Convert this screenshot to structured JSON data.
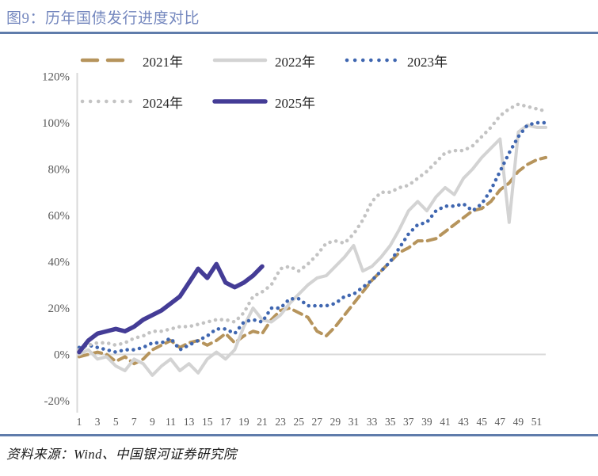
{
  "header": {
    "title": "图9：历年国债发行进度对比"
  },
  "footer": {
    "source": "资料来源：Wind、中国银河证券研究院"
  },
  "colors": {
    "title_text": "#7487be",
    "rule": "#5f7cab",
    "axis_line": "#d9d9d9",
    "tick_text": "#595959",
    "legend_text": "#262626"
  },
  "chart_data": {
    "type": "line",
    "title": "历年国债发行进度对比",
    "xlabel": "",
    "ylabel": "",
    "y_tick_format": "percent",
    "ylim": [
      -20,
      120
    ],
    "y_ticks": [
      120,
      100,
      80,
      60,
      40,
      20,
      0,
      -20
    ],
    "x_ticks": [
      1,
      3,
      5,
      7,
      9,
      11,
      13,
      15,
      17,
      19,
      21,
      23,
      25,
      27,
      29,
      31,
      33,
      35,
      37,
      39,
      41,
      43,
      45,
      47,
      49,
      51
    ],
    "gridlines": "horizontal line at 0% only",
    "legend_position": "top",
    "series": [
      {
        "name": "2021年",
        "color": "#b6945c",
        "line_style": "dashed",
        "width": 4,
        "values": [
          -1,
          0,
          1,
          0,
          -3,
          -1,
          -4,
          -2,
          2,
          4,
          6,
          3,
          5,
          6,
          4,
          6,
          9,
          5,
          8,
          10,
          9,
          15,
          19,
          20,
          18,
          16,
          10,
          8,
          12,
          17,
          22,
          27,
          32,
          36,
          40,
          44,
          46,
          49,
          49,
          50,
          53,
          56,
          59,
          62,
          63,
          66,
          71,
          74,
          79,
          82,
          84,
          85
        ]
      },
      {
        "name": "2022年",
        "color": "#d3d3d3",
        "line_style": "solid",
        "width": 4,
        "values": [
          0,
          2,
          -2,
          -1,
          -5,
          -7,
          -2,
          -4,
          -9,
          -5,
          -2,
          -7,
          -4,
          -8,
          -2,
          1,
          -2,
          2,
          12,
          20,
          15,
          14,
          17,
          22,
          26,
          30,
          33,
          34,
          38,
          42,
          47,
          36,
          38,
          42,
          47,
          54,
          62,
          66,
          62,
          68,
          72,
          69,
          76,
          80,
          85,
          89,
          93,
          57,
          96,
          99,
          98,
          98
        ]
      },
      {
        "name": "2023年",
        "color": "#3f66b0",
        "line_style": "dotted",
        "width": 4.5,
        "values": [
          3,
          4,
          3,
          2,
          1,
          2,
          2,
          3,
          5,
          5,
          7,
          2,
          4,
          6,
          8,
          11,
          11,
          9,
          14,
          15,
          14,
          20,
          20,
          24,
          24,
          21,
          21,
          21,
          22,
          25,
          26,
          29,
          32,
          36,
          40,
          46,
          52,
          56,
          57,
          62,
          64,
          64,
          65,
          62,
          65,
          71,
          79,
          87,
          94,
          99,
          100,
          100
        ]
      },
      {
        "name": "2024年",
        "color": "#c3c3c3",
        "line_style": "dotted",
        "width": 4.5,
        "values": [
          2,
          4,
          5,
          5,
          4,
          5,
          7,
          8,
          10,
          10,
          11,
          12,
          12,
          13,
          14,
          15,
          15,
          14,
          18,
          25,
          27,
          30,
          37,
          38,
          36,
          39,
          43,
          48,
          49,
          48,
          52,
          58,
          66,
          70,
          70,
          72,
          73,
          76,
          79,
          83,
          87,
          88,
          88,
          90,
          94,
          98,
          103,
          106,
          108,
          107,
          106,
          105
        ]
      },
      {
        "name": "2025年",
        "color": "#443c96",
        "line_style": "solid",
        "width": 5.5,
        "values": [
          1,
          6,
          9,
          10,
          11,
          10,
          12,
          15,
          17,
          19,
          22,
          25,
          31,
          37,
          33,
          39,
          31,
          29,
          31,
          34,
          38
        ]
      }
    ]
  }
}
